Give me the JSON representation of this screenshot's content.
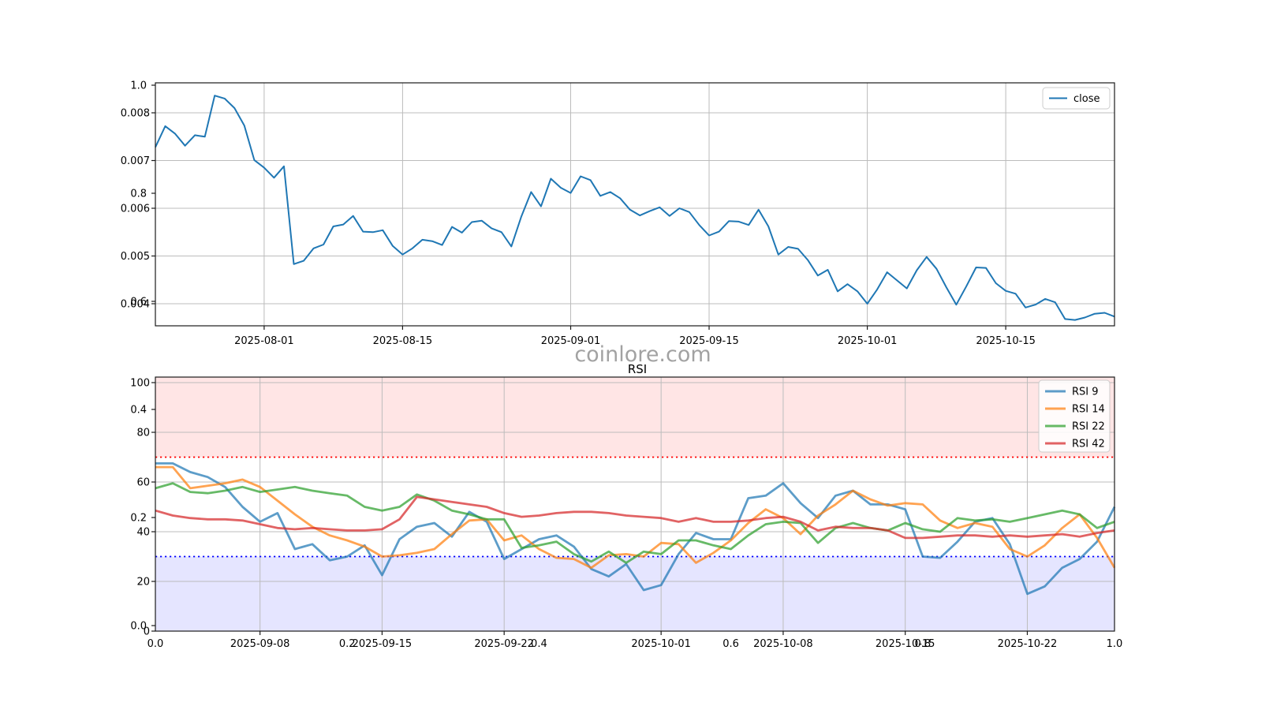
{
  "watermark": {
    "text": "coinlore.com",
    "color": "#8c8c8c"
  },
  "price_chart": {
    "legend": {
      "label": "close",
      "color": "#1f77b4"
    },
    "y_tick_labels": [
      "0.008",
      "0.007",
      "0.006",
      "0.005",
      "0.004"
    ],
    "y_tick_values": [
      0.008,
      0.007,
      0.006,
      0.005,
      0.004
    ],
    "x_tick_labels": [
      "2025-08-01",
      "2025-08-15",
      "2025-09-01",
      "2025-09-15",
      "2025-10-01",
      "2025-10-15"
    ],
    "grid": true,
    "line_color": "#1f77b4"
  },
  "rsi_chart": {
    "title": "RSI",
    "legend": [
      {
        "label": "RSI 9",
        "color": "#1f77b4"
      },
      {
        "label": "RSI 14",
        "color": "#ff7f0e"
      },
      {
        "label": "RSI 22",
        "color": "#2ca02c"
      },
      {
        "label": "RSI 42",
        "color": "#d62728"
      }
    ],
    "y_tick_labels": [
      "100",
      "80",
      "60",
      "40",
      "20",
      "0"
    ],
    "y_tick_values": [
      100,
      80,
      60,
      40,
      20,
      0
    ],
    "x_tick_labels": [
      "2025-09-08",
      "2025-09-15",
      "2025-09-22",
      "2025-10-01",
      "2025-10-08",
      "2025-10-15",
      "2025-10-22"
    ],
    "overbought_level": 70,
    "oversold_level": 30,
    "overbought_line_color": "#ff0000",
    "oversold_line_color": "#0000ff",
    "overbought_band_color": "rgba(255,0,0,0.10)",
    "oversold_band_color": "rgba(0,0,255,0.10)",
    "grid": true
  },
  "overlay_axis": {
    "x_tick_labels": [
      "0.0",
      "0.2",
      "0.4",
      "0.6",
      "0.8",
      "1.0"
    ],
    "y_tick_labels": [
      "1.0",
      "0.8",
      "0.6",
      "0.4",
      "0.2",
      "0.0"
    ]
  },
  "chart_data": [
    {
      "type": "line",
      "title": "close",
      "xlabel": "",
      "ylabel": "",
      "ylim": [
        0.00354,
        0.00863
      ],
      "legend_position": "upper right",
      "grid": true,
      "x_ticks": [
        "2025-08-01",
        "2025-08-15",
        "2025-09-01",
        "2025-09-15",
        "2025-10-01",
        "2025-10-15"
      ],
      "series": [
        {
          "name": "close",
          "color": "#1f77b4",
          "start_date": "2025-07-21",
          "end_date": "2025-10-26",
          "freq": "daily",
          "values": [
            0.00728,
            0.00772,
            0.00756,
            0.00731,
            0.00753,
            0.0075,
            0.00836,
            0.0083,
            0.0081,
            0.00773,
            0.00701,
            0.00685,
            0.00664,
            0.00688,
            0.00483,
            0.0049,
            0.00516,
            0.00524,
            0.00562,
            0.00566,
            0.00584,
            0.00551,
            0.0055,
            0.00554,
            0.00521,
            0.00503,
            0.00516,
            0.00534,
            0.00531,
            0.00523,
            0.00561,
            0.00549,
            0.00571,
            0.00574,
            0.00558,
            0.0055,
            0.0052,
            0.00582,
            0.00634,
            0.00604,
            0.00662,
            0.00643,
            0.00632,
            0.00667,
            0.00659,
            0.00626,
            0.00634,
            0.00621,
            0.00597,
            0.00585,
            0.00594,
            0.00602,
            0.00584,
            0.006,
            0.00592,
            0.00565,
            0.00543,
            0.00551,
            0.00573,
            0.00572,
            0.00565,
            0.00597,
            0.00562,
            0.00503,
            0.00519,
            0.00515,
            0.00491,
            0.00459,
            0.00471,
            0.00426,
            0.00441,
            0.00426,
            0.004,
            0.0043,
            0.00466,
            0.00449,
            0.00432,
            0.0047,
            0.00498,
            0.00473,
            0.00434,
            0.00398,
            0.00436,
            0.00476,
            0.00475,
            0.00443,
            0.00427,
            0.00421,
            0.00392,
            0.00398,
            0.0041,
            0.00403,
            0.00368,
            0.00366,
            0.00371,
            0.00379,
            0.00381,
            0.00373
          ]
        }
      ]
    },
    {
      "type": "line",
      "title": "RSI",
      "xlabel": "",
      "ylabel": "",
      "ylim": [
        0,
        102.2
      ],
      "legend_position": "upper right",
      "grid": true,
      "x_ticks": [
        "2025-09-08",
        "2025-09-15",
        "2025-09-22",
        "2025-10-01",
        "2025-10-08",
        "2025-10-15",
        "2025-10-22"
      ],
      "reference_lines": {
        "overbought": 70,
        "oversold": 30
      },
      "start_date": "2025-09-02",
      "end_date": "2025-10-27",
      "freq": "daily",
      "series": [
        {
          "name": "RSI 9",
          "color": "#1f77b4",
          "values": [
            67.5,
            67.5,
            64,
            62,
            58,
            50,
            44,
            47.5,
            33,
            35,
            28.5,
            30,
            34.5,
            22.5,
            37,
            42,
            43.5,
            38,
            48,
            44,
            29,
            33,
            37,
            38.5,
            34,
            25,
            22,
            27,
            16.5,
            18.5,
            31,
            39.5,
            37,
            37,
            53.5,
            54.5,
            59.5,
            51.5,
            45.5,
            54.5,
            56.5,
            51,
            51,
            49,
            30,
            29.5,
            36,
            44,
            45.5,
            35,
            15,
            18,
            25.5,
            29,
            36,
            50
          ]
        },
        {
          "name": "RSI 14",
          "color": "#ff7f0e",
          "values": [
            66,
            66,
            57.5,
            58.5,
            59.5,
            61,
            58,
            52.5,
            47,
            42,
            38.5,
            36.5,
            34,
            30,
            30.5,
            31.5,
            33,
            39,
            44.5,
            45,
            36.5,
            38.5,
            33,
            29.5,
            29,
            25.5,
            30.5,
            31,
            30,
            35.5,
            35,
            27.5,
            31.5,
            36.5,
            43.5,
            49,
            45.5,
            39,
            46.5,
            51,
            56.5,
            53,
            50.5,
            51.5,
            51,
            44.5,
            41.5,
            43.5,
            42,
            33,
            30,
            34.5,
            41.5,
            47,
            37.5,
            25.5
          ]
        },
        {
          "name": "RSI 22",
          "color": "#2ca02c",
          "values": [
            57.5,
            59.5,
            56,
            55.5,
            56.5,
            58,
            56,
            57,
            58,
            56.5,
            55.5,
            54.5,
            50,
            48.5,
            50,
            55,
            52.5,
            48.5,
            47,
            45,
            45,
            33.5,
            34.5,
            36,
            31,
            28,
            32,
            27.5,
            32,
            31,
            36.5,
            36.5,
            34.5,
            33,
            38.5,
            43,
            44,
            43.5,
            35.5,
            41.5,
            43.5,
            41.5,
            40.5,
            43.5,
            41,
            40,
            45.5,
            44.5,
            45,
            44,
            45.5,
            47,
            48.5,
            47,
            41.5,
            44
          ]
        },
        {
          "name": "RSI 42",
          "color": "#d62728",
          "values": [
            48.5,
            46.5,
            45.5,
            45,
            45,
            44.5,
            43,
            41.5,
            41,
            41.5,
            41,
            40.5,
            40.5,
            41,
            45,
            54,
            53,
            52,
            51,
            50,
            47.5,
            46,
            46.5,
            47.5,
            48,
            48,
            47.5,
            46.5,
            46,
            45.5,
            44,
            45.5,
            44,
            44,
            44.5,
            45.5,
            46,
            44,
            40.5,
            42,
            41.5,
            41.5,
            40.5,
            37.5,
            37.5,
            38,
            38.5,
            38.5,
            38,
            38.5,
            38,
            38.5,
            39,
            38,
            39.5,
            40.5
          ]
        }
      ]
    }
  ]
}
